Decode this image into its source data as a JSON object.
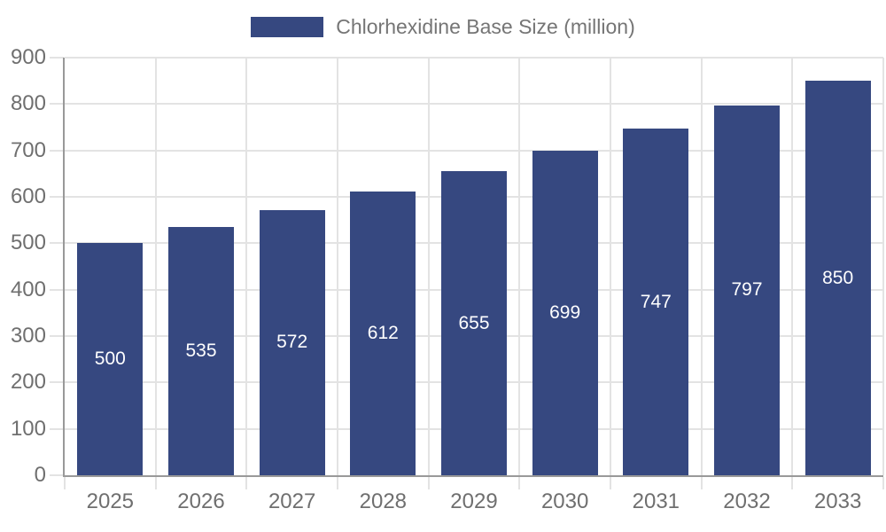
{
  "chart_data": {
    "type": "bar",
    "title": "",
    "legend": "Chlorhexidine Base Size (million)",
    "legend_position": "top",
    "categories": [
      "2025",
      "2026",
      "2027",
      "2028",
      "2029",
      "2030",
      "2031",
      "2032",
      "2033"
    ],
    "values": [
      500,
      535,
      572,
      612,
      655,
      699,
      747,
      797,
      850
    ],
    "xlabel": "",
    "ylabel": "",
    "ylim": [
      0,
      900
    ],
    "ytick_step": 100,
    "grid": true,
    "bar_labels_inside": true,
    "colors": {
      "bar": "#364880",
      "grid": "#e3e3e3",
      "axis": "#999999",
      "tick_label": "#6f6f6f",
      "legend_text": "#757575",
      "bar_label": "#ffffff",
      "background": "#ffffff"
    }
  }
}
